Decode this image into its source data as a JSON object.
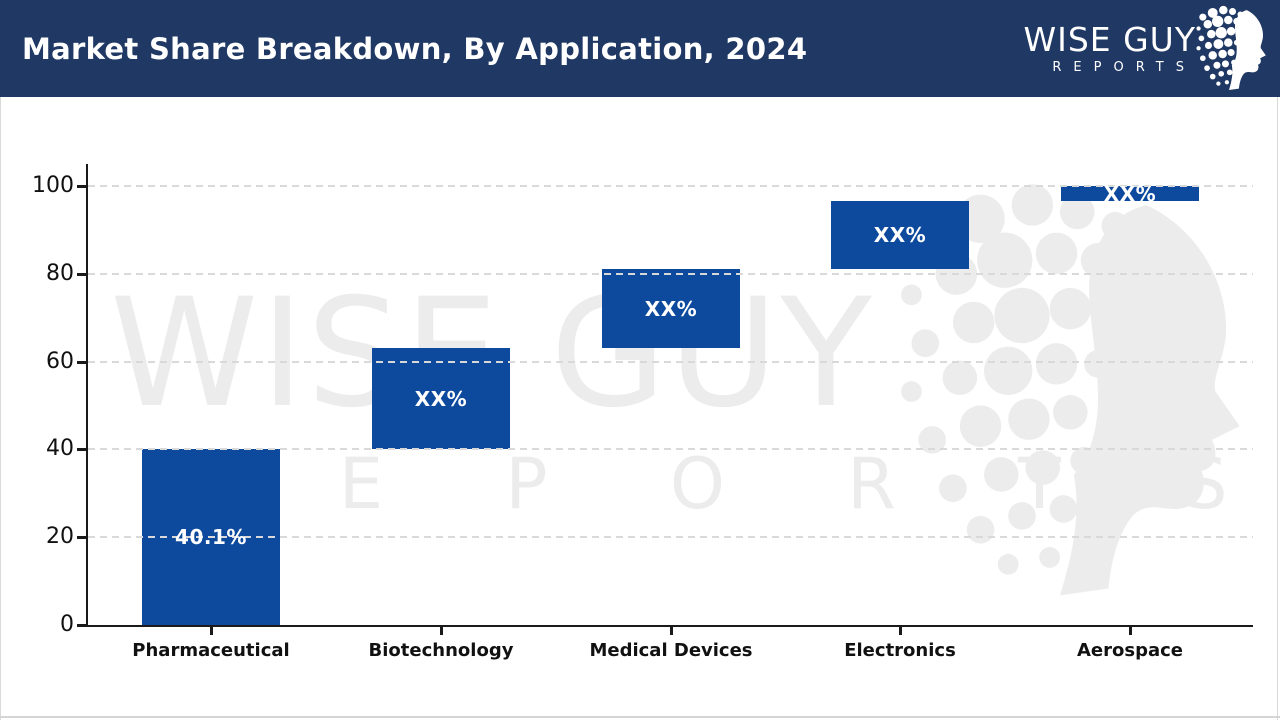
{
  "header": {
    "title": "Market Share Breakdown, By Application, 2024",
    "logo": {
      "line1": "WISE GUY",
      "line2": "REPORTS"
    }
  },
  "watermark": {
    "line1": "WISE GUY",
    "line2": "R E P O R T S"
  },
  "chart_data": {
    "type": "bar",
    "subtype": "waterfall",
    "title": "Market Share Breakdown, By Application, 2024",
    "categories": [
      "Pharmaceutical",
      "Biotechnology",
      "Medical Devices",
      "Electronics",
      "Aerospace"
    ],
    "segments": [
      {
        "category": "Pharmaceutical",
        "start": 0,
        "end": 40.1,
        "label": "40.1%"
      },
      {
        "category": "Biotechnology",
        "start": 40.1,
        "end": 63,
        "label": "XX%"
      },
      {
        "category": "Medical Devices",
        "start": 63,
        "end": 81,
        "label": "XX%"
      },
      {
        "category": "Electronics",
        "start": 81,
        "end": 96.5,
        "label": "XX%"
      },
      {
        "category": "Aerospace",
        "start": 96.5,
        "end": 100,
        "label": "XX%"
      }
    ],
    "yticks": [
      0,
      20,
      40,
      60,
      80,
      100
    ],
    "ylim": [
      0,
      105
    ],
    "grid": "dashed horizontal",
    "legend": "none",
    "bar_color": "#0d4a9e",
    "bar_label_color": "#ffffff"
  },
  "colors": {
    "header_bg": "#1f3864",
    "bar": "#0d4a9e",
    "watermark": "#ececec",
    "gridline": "#d9d9d9",
    "axis": "#1a1a1a"
  }
}
